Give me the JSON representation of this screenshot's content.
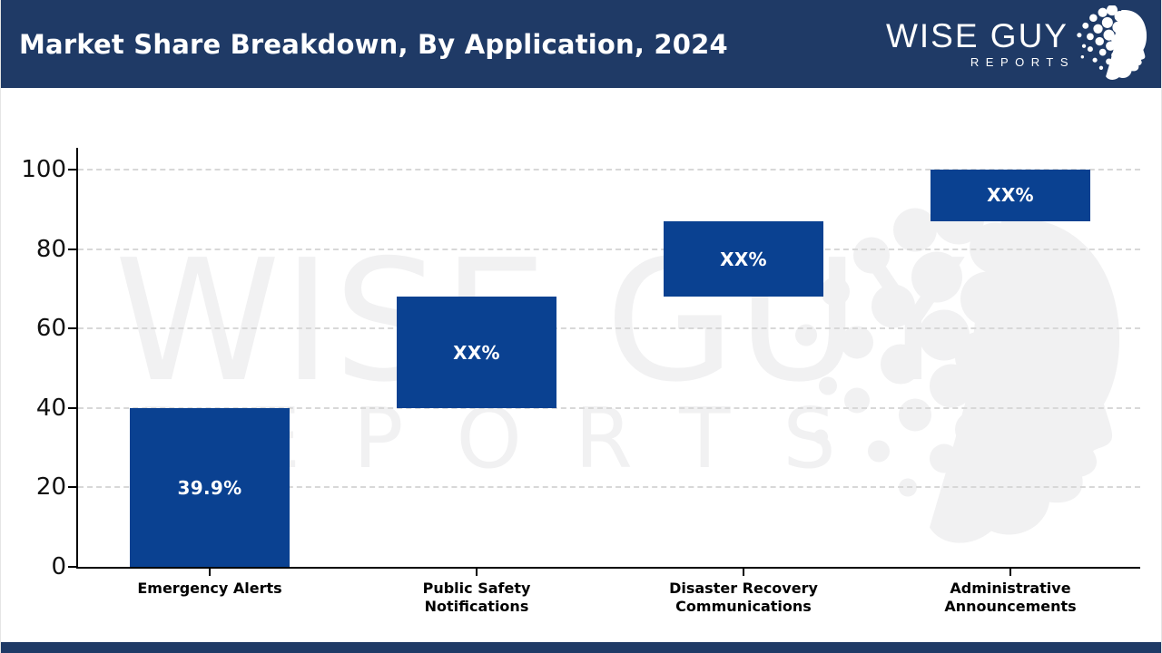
{
  "header": {
    "title": "Market Share Breakdown, By Application, 2024",
    "logo": {
      "brand_line1": "WISE GUY",
      "brand_line2": "REPORTS"
    }
  },
  "watermark": {
    "line1": "WISE GUY",
    "line2": "REPORTS"
  },
  "colors": {
    "header_navy": "#1F3A66",
    "bar_blue": "#0A4191",
    "bar_label_white": "#FFFFFF",
    "gridline_gray": "#D8D8D8",
    "watermark_gray": "#F1F1F2",
    "axis_black": "#000000"
  },
  "chart_data": {
    "type": "bar",
    "variant": "waterfall (floating stacked segments)",
    "title": "Market Share Breakdown, By Application, 2024",
    "categories": [
      "Emergency Alerts",
      "Public Safety\nNotifications",
      "Disaster Recovery\nCommunications",
      "Administrative\nAnnouncements"
    ],
    "segments": [
      {
        "category": "Emergency Alerts",
        "start": 0,
        "end": 39.9,
        "value": 39.9,
        "label": "39.9%"
      },
      {
        "category": "Public Safety Notifications",
        "start": 39.9,
        "end": 68,
        "value": 28.1,
        "label": "XX%"
      },
      {
        "category": "Disaster Recovery Communications",
        "start": 68,
        "end": 87,
        "value": 19,
        "label": "XX%"
      },
      {
        "category": "Administrative Announcements",
        "start": 87,
        "end": 100,
        "value": 13,
        "label": "XX%"
      }
    ],
    "xlabel": "",
    "ylabel": "",
    "ylim": [
      0,
      105
    ],
    "yticks": [
      0,
      20,
      40,
      60,
      80,
      100
    ],
    "grid": {
      "axis": "y",
      "style": "dashed"
    },
    "legend": "none"
  }
}
